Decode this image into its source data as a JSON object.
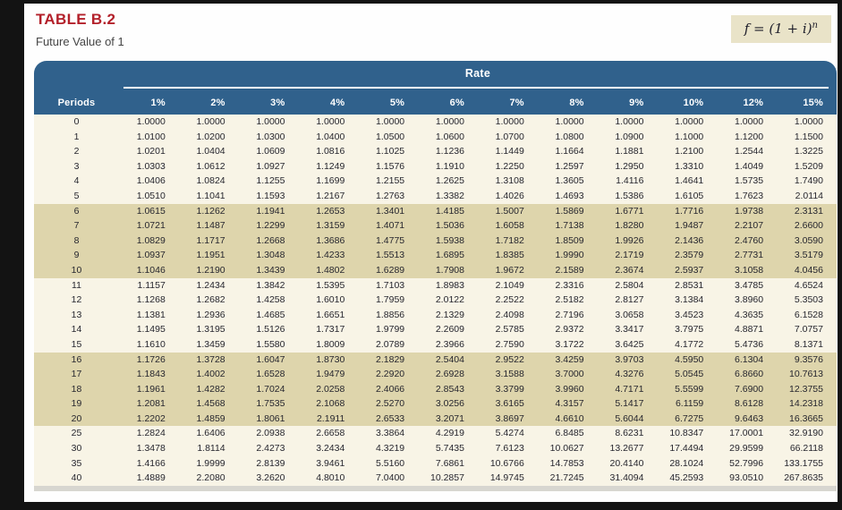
{
  "page": {
    "title": "TABLE B.2",
    "subtitle": "Future Value of 1",
    "formula_body": "f = (1 + i)",
    "formula_exponent": "n"
  },
  "colors": {
    "header_blue": "#30618c",
    "title_red": "#b3202a",
    "band_light": "#f8f4e6",
    "band_tan": "#ded5ac",
    "formula_box_bg": "#e9e3c8",
    "frame_black": "#131313"
  },
  "table": {
    "rate_group_label": "Rate",
    "periods_label": "Periods",
    "rate_headers": [
      "1%",
      "2%",
      "3%",
      "4%",
      "5%",
      "6%",
      "7%",
      "8%",
      "9%",
      "10%",
      "12%",
      "15%"
    ],
    "rows": [
      {
        "period": "0",
        "shaded": false,
        "values": [
          "1.0000",
          "1.0000",
          "1.0000",
          "1.0000",
          "1.0000",
          "1.0000",
          "1.0000",
          "1.0000",
          "1.0000",
          "1.0000",
          "1.0000",
          "1.0000"
        ]
      },
      {
        "period": "1",
        "shaded": false,
        "values": [
          "1.0100",
          "1.0200",
          "1.0300",
          "1.0400",
          "1.0500",
          "1.0600",
          "1.0700",
          "1.0800",
          "1.0900",
          "1.1000",
          "1.1200",
          "1.1500"
        ]
      },
      {
        "period": "2",
        "shaded": false,
        "values": [
          "1.0201",
          "1.0404",
          "1.0609",
          "1.0816",
          "1.1025",
          "1.1236",
          "1.1449",
          "1.1664",
          "1.1881",
          "1.2100",
          "1.2544",
          "1.3225"
        ]
      },
      {
        "period": "3",
        "shaded": false,
        "values": [
          "1.0303",
          "1.0612",
          "1.0927",
          "1.1249",
          "1.1576",
          "1.1910",
          "1.2250",
          "1.2597",
          "1.2950",
          "1.3310",
          "1.4049",
          "1.5209"
        ]
      },
      {
        "period": "4",
        "shaded": false,
        "values": [
          "1.0406",
          "1.0824",
          "1.1255",
          "1.1699",
          "1.2155",
          "1.2625",
          "1.3108",
          "1.3605",
          "1.4116",
          "1.4641",
          "1.5735",
          "1.7490"
        ]
      },
      {
        "period": "5",
        "shaded": false,
        "values": [
          "1.0510",
          "1.1041",
          "1.1593",
          "1.2167",
          "1.2763",
          "1.3382",
          "1.4026",
          "1.4693",
          "1.5386",
          "1.6105",
          "1.7623",
          "2.0114"
        ]
      },
      {
        "period": "6",
        "shaded": true,
        "values": [
          "1.0615",
          "1.1262",
          "1.1941",
          "1.2653",
          "1.3401",
          "1.4185",
          "1.5007",
          "1.5869",
          "1.6771",
          "1.7716",
          "1.9738",
          "2.3131"
        ]
      },
      {
        "period": "7",
        "shaded": true,
        "values": [
          "1.0721",
          "1.1487",
          "1.2299",
          "1.3159",
          "1.4071",
          "1.5036",
          "1.6058",
          "1.7138",
          "1.8280",
          "1.9487",
          "2.2107",
          "2.6600"
        ]
      },
      {
        "period": "8",
        "shaded": true,
        "values": [
          "1.0829",
          "1.1717",
          "1.2668",
          "1.3686",
          "1.4775",
          "1.5938",
          "1.7182",
          "1.8509",
          "1.9926",
          "2.1436",
          "2.4760",
          "3.0590"
        ]
      },
      {
        "period": "9",
        "shaded": true,
        "values": [
          "1.0937",
          "1.1951",
          "1.3048",
          "1.4233",
          "1.5513",
          "1.6895",
          "1.8385",
          "1.9990",
          "2.1719",
          "2.3579",
          "2.7731",
          "3.5179"
        ]
      },
      {
        "period": "10",
        "shaded": true,
        "values": [
          "1.1046",
          "1.2190",
          "1.3439",
          "1.4802",
          "1.6289",
          "1.7908",
          "1.9672",
          "2.1589",
          "2.3674",
          "2.5937",
          "3.1058",
          "4.0456"
        ]
      },
      {
        "period": "11",
        "shaded": false,
        "values": [
          "1.1157",
          "1.2434",
          "1.3842",
          "1.5395",
          "1.7103",
          "1.8983",
          "2.1049",
          "2.3316",
          "2.5804",
          "2.8531",
          "3.4785",
          "4.6524"
        ]
      },
      {
        "period": "12",
        "shaded": false,
        "values": [
          "1.1268",
          "1.2682",
          "1.4258",
          "1.6010",
          "1.7959",
          "2.0122",
          "2.2522",
          "2.5182",
          "2.8127",
          "3.1384",
          "3.8960",
          "5.3503"
        ]
      },
      {
        "period": "13",
        "shaded": false,
        "values": [
          "1.1381",
          "1.2936",
          "1.4685",
          "1.6651",
          "1.8856",
          "2.1329",
          "2.4098",
          "2.7196",
          "3.0658",
          "3.4523",
          "4.3635",
          "6.1528"
        ]
      },
      {
        "period": "14",
        "shaded": false,
        "values": [
          "1.1495",
          "1.3195",
          "1.5126",
          "1.7317",
          "1.9799",
          "2.2609",
          "2.5785",
          "2.9372",
          "3.3417",
          "3.7975",
          "4.8871",
          "7.0757"
        ]
      },
      {
        "period": "15",
        "shaded": false,
        "values": [
          "1.1610",
          "1.3459",
          "1.5580",
          "1.8009",
          "2.0789",
          "2.3966",
          "2.7590",
          "3.1722",
          "3.6425",
          "4.1772",
          "5.4736",
          "8.1371"
        ]
      },
      {
        "period": "16",
        "shaded": true,
        "values": [
          "1.1726",
          "1.3728",
          "1.6047",
          "1.8730",
          "2.1829",
          "2.5404",
          "2.9522",
          "3.4259",
          "3.9703",
          "4.5950",
          "6.1304",
          "9.3576"
        ]
      },
      {
        "period": "17",
        "shaded": true,
        "values": [
          "1.1843",
          "1.4002",
          "1.6528",
          "1.9479",
          "2.2920",
          "2.6928",
          "3.1588",
          "3.7000",
          "4.3276",
          "5.0545",
          "6.8660",
          "10.7613"
        ]
      },
      {
        "period": "18",
        "shaded": true,
        "values": [
          "1.1961",
          "1.4282",
          "1.7024",
          "2.0258",
          "2.4066",
          "2.8543",
          "3.3799",
          "3.9960",
          "4.7171",
          "5.5599",
          "7.6900",
          "12.3755"
        ]
      },
      {
        "period": "19",
        "shaded": true,
        "values": [
          "1.2081",
          "1.4568",
          "1.7535",
          "2.1068",
          "2.5270",
          "3.0256",
          "3.6165",
          "4.3157",
          "5.1417",
          "6.1159",
          "8.6128",
          "14.2318"
        ]
      },
      {
        "period": "20",
        "shaded": true,
        "values": [
          "1.2202",
          "1.4859",
          "1.8061",
          "2.1911",
          "2.6533",
          "3.2071",
          "3.8697",
          "4.6610",
          "5.6044",
          "6.7275",
          "9.6463",
          "16.3665"
        ]
      },
      {
        "period": "25",
        "shaded": false,
        "values": [
          "1.2824",
          "1.6406",
          "2.0938",
          "2.6658",
          "3.3864",
          "4.2919",
          "5.4274",
          "6.8485",
          "8.6231",
          "10.8347",
          "17.0001",
          "32.9190"
        ]
      },
      {
        "period": "30",
        "shaded": false,
        "values": [
          "1.3478",
          "1.8114",
          "2.4273",
          "3.2434",
          "4.3219",
          "5.7435",
          "7.6123",
          "10.0627",
          "13.2677",
          "17.4494",
          "29.9599",
          "66.2118"
        ]
      },
      {
        "period": "35",
        "shaded": false,
        "values": [
          "1.4166",
          "1.9999",
          "2.8139",
          "3.9461",
          "5.5160",
          "7.6861",
          "10.6766",
          "14.7853",
          "20.4140",
          "28.1024",
          "52.7996",
          "133.1755"
        ]
      },
      {
        "period": "40",
        "shaded": false,
        "values": [
          "1.4889",
          "2.2080",
          "3.2620",
          "4.8010",
          "7.0400",
          "10.2857",
          "14.9745",
          "21.7245",
          "31.4094",
          "45.2593",
          "93.0510",
          "267.8635"
        ]
      }
    ]
  }
}
